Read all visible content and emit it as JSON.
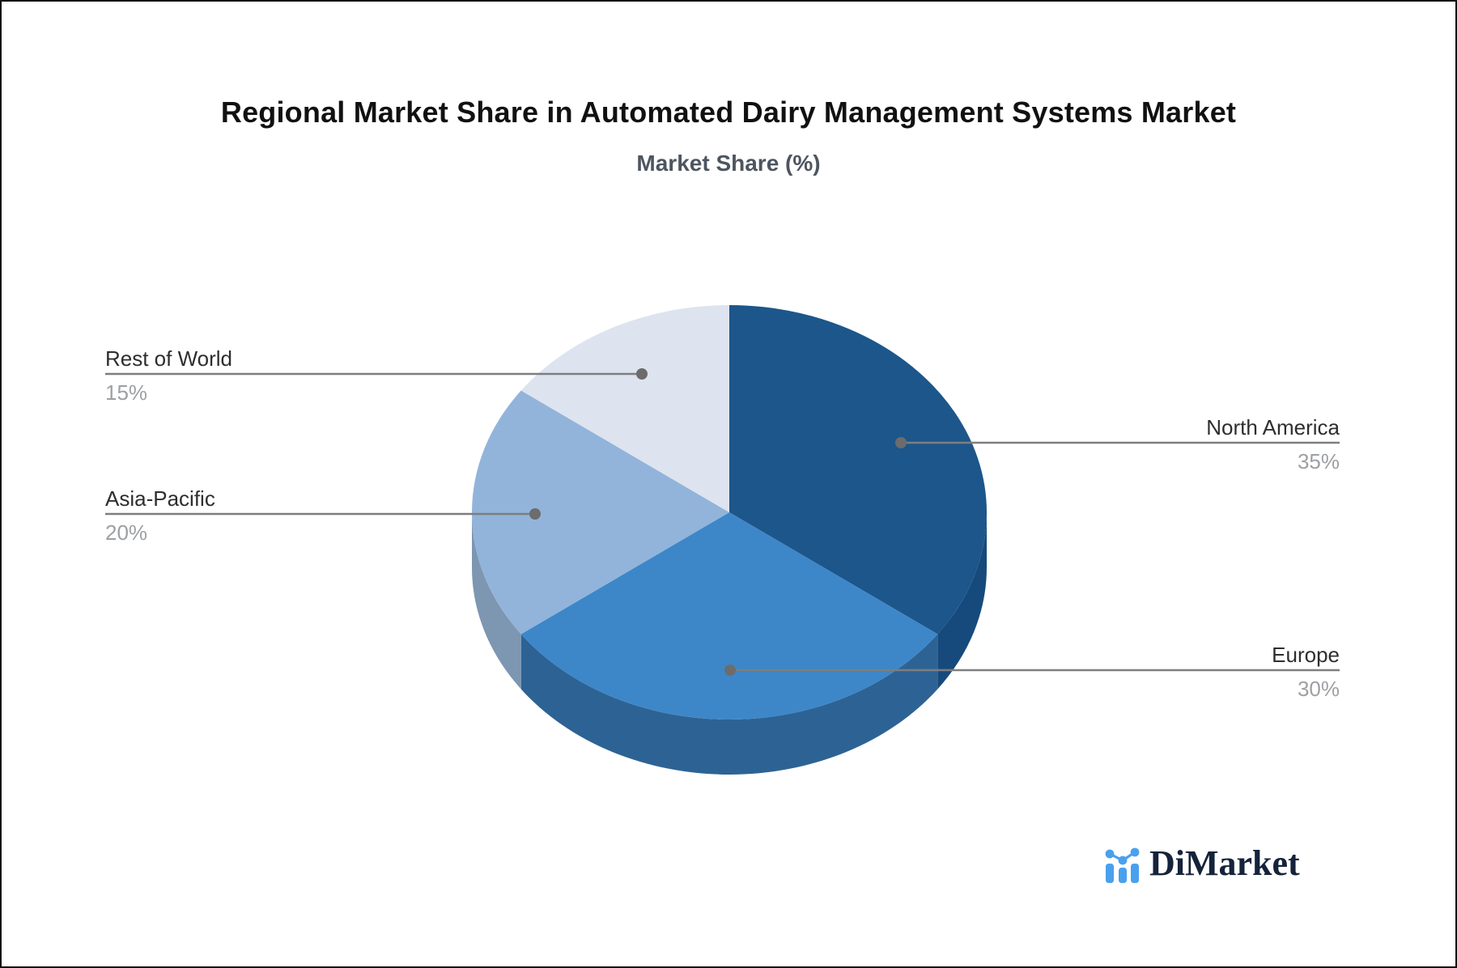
{
  "title": "Regional Market Share in Automated Dairy Management Systems Market",
  "subtitle": "Market Share (%)",
  "chart_data": {
    "type": "pie",
    "style": "3d",
    "title": "Regional Market Share in Automated Dairy Management Systems Market",
    "subtitle": "Market Share (%)",
    "unit": "%",
    "direction": "clockwise",
    "start_angle": "12-o-clock",
    "categories": [
      "North America",
      "Europe",
      "Asia-Pacific",
      "Rest of World"
    ],
    "values": [
      35,
      30,
      20,
      15
    ],
    "display_labels": [
      "35%",
      "30%",
      "20%",
      "15%"
    ],
    "colors": [
      "#1c568b",
      "#3d87c9",
      "#92b4da",
      "#dde4ef"
    ],
    "side_colors": [
      "#164a7c",
      "#2d6394",
      "#7d96b2",
      "#b9c3d6"
    ],
    "leader_line_color": "#7e7e7e",
    "leader_dot_color": "#6c6c6c",
    "category_label_color": "#2e2e2e",
    "percent_label_color": "#9da0a3"
  },
  "logo": {
    "text": "DiMarket",
    "icon": "bar-chart-logo-icon",
    "icon_color": "#4aa0ee",
    "text_color": "#15233b"
  }
}
